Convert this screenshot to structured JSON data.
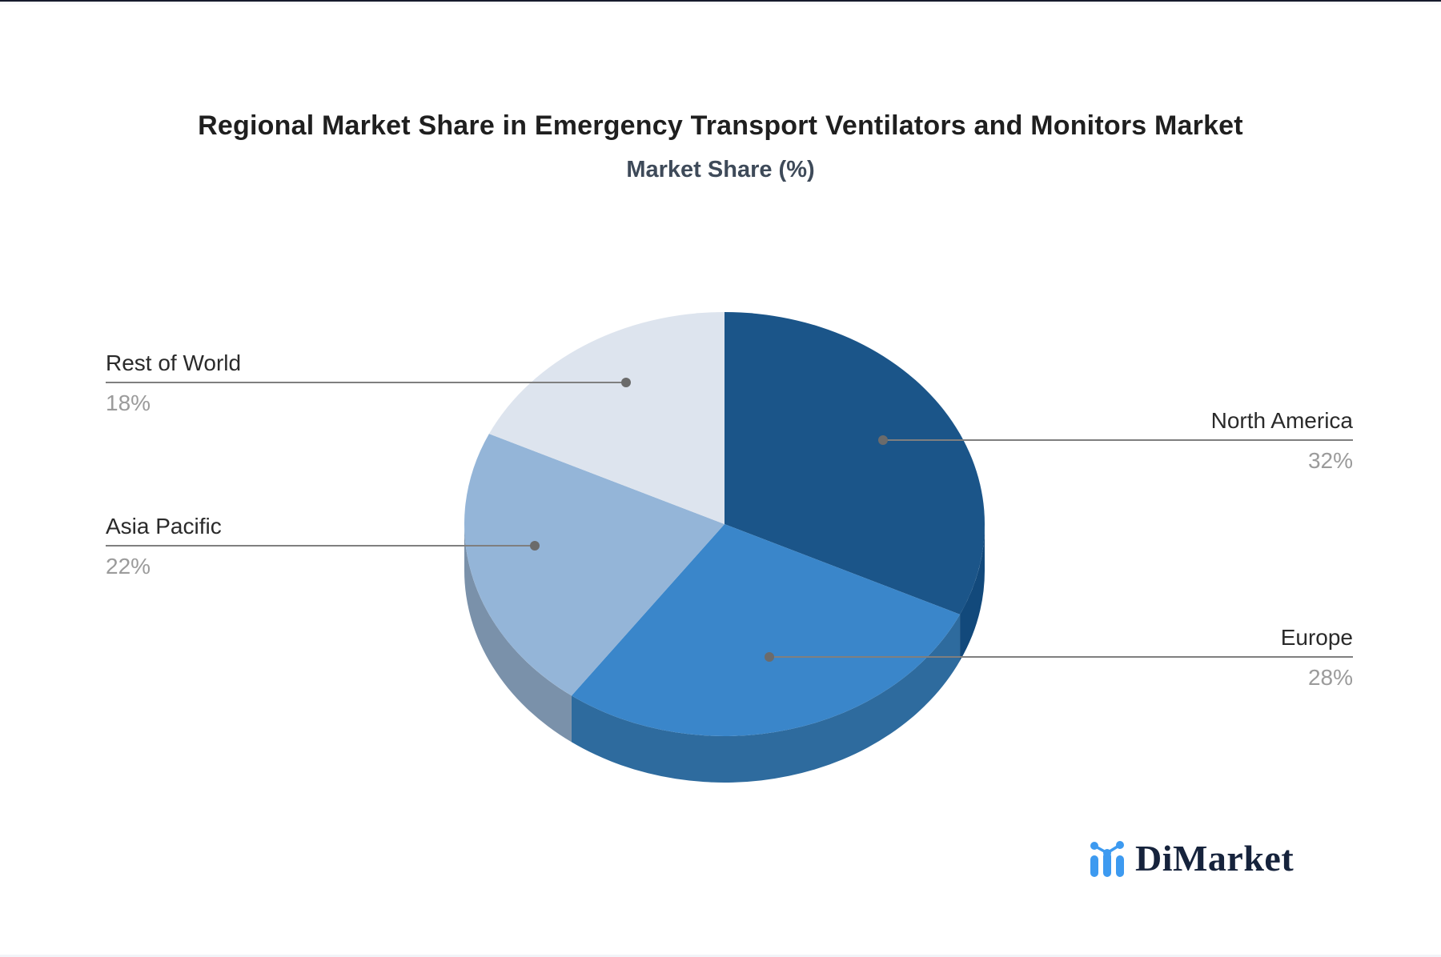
{
  "title": "Regional Market Share in Emergency Transport Ventilators and Monitors Market",
  "subtitle": "Market Share (%)",
  "chart_data": {
    "type": "pie",
    "style": "3d",
    "title": "Regional Market Share in Emergency Transport Ventilators and Monitors Market",
    "subtitle": "Market Share (%)",
    "categories": [
      "North America",
      "Europe",
      "Asia Pacific",
      "Rest of World"
    ],
    "values": [
      32,
      28,
      22,
      18
    ],
    "unit": "%",
    "value_labels": [
      "32%",
      "28%",
      "22%",
      "18%"
    ],
    "colors": [
      "#1b5589",
      "#3a86ca",
      "#94b5d8",
      "#dde4ee"
    ],
    "side_colors": [
      "#12497b",
      "#2e6b9e",
      "#7a91aa",
      "#b8c4d6"
    ],
    "start_angle_deg": 0,
    "direction": "clockwise",
    "legend_position": "none",
    "leader_line_color": "#7f7f7f",
    "leader_dot_color": "#6b6b6b",
    "label_color": "#2a2a2a",
    "percent_color": "#9b9b9b"
  },
  "branding": {
    "logo_text": "DiMarket",
    "logo_icon": "bar-line-chart-icon",
    "logo_icon_color": "#3d9af0",
    "logo_text_color": "#16233c"
  }
}
